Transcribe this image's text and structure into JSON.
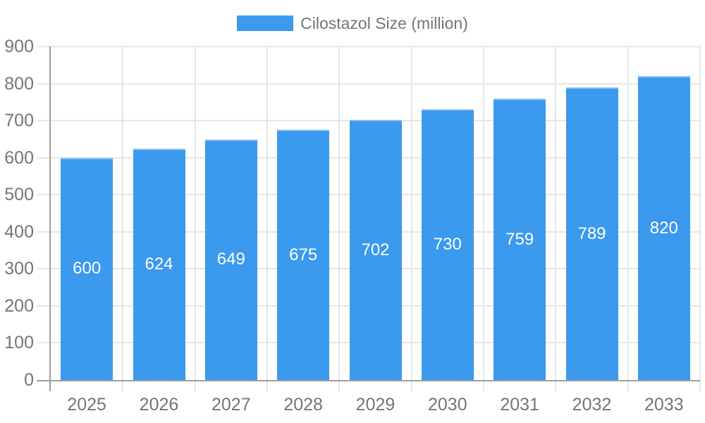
{
  "chart_data": {
    "type": "bar",
    "title": "",
    "categories": [
      "2025",
      "2026",
      "2027",
      "2028",
      "2029",
      "2030",
      "2031",
      "2032",
      "2033"
    ],
    "series": [
      {
        "name": "Cilostazol Size (million)",
        "values": [
          600,
          624,
          649,
          675,
          702,
          730,
          759,
          789,
          820
        ]
      }
    ],
    "xlabel": "",
    "ylabel": "",
    "ylim": [
      0,
      900
    ],
    "yticks": [
      0,
      100,
      200,
      300,
      400,
      500,
      600,
      700,
      800,
      900
    ],
    "grid": true,
    "legend_position": "top-center",
    "value_labels": "inside-center-white",
    "colors": {
      "bar": "#3B99EE",
      "bar_edge": "#88BEF3",
      "gridline": "#E6E6E6",
      "axis_line": "#9E9E9E",
      "axis_text": "#757575",
      "value_label": "#FFFFFF",
      "background": "#FFFFFF"
    }
  }
}
